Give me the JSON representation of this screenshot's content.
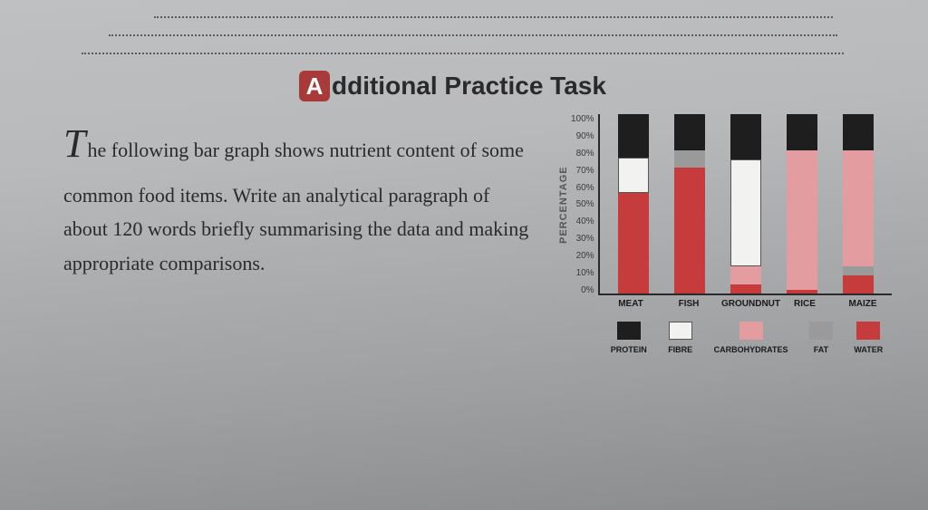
{
  "title": {
    "badge_letter": "A",
    "rest": "dditional Practice Task",
    "badge_bg": "#a93a3a",
    "badge_fg": "#ffffff"
  },
  "paragraph": {
    "dropcap": "T",
    "text": "he following bar graph shows nutrient content of some common food items. Write an analytical paragraph of about 120 words briefly summarising the data and making appropriate comparisons."
  },
  "chart": {
    "type": "stacked-bar",
    "ylabel": "PERCENTAGE",
    "ylim": [
      0,
      100
    ],
    "ytick_step": 10,
    "yticks": [
      "100%",
      "90%",
      "80%",
      "70%",
      "60%",
      "50%",
      "40%",
      "30%",
      "20%",
      "10%",
      "0%"
    ],
    "axis_color": "#2a2a2a",
    "label_color": "#3a3a3a",
    "categories": [
      "MEAT",
      "FISH",
      "GROUNDNUT",
      "RICE",
      "MAIZE"
    ],
    "stack_order": [
      "protein",
      "fibre",
      "carbohydrates",
      "fat",
      "water"
    ],
    "colors": {
      "protein": "#1e1e1e",
      "fibre": "#f2f2f0",
      "fibre_border": "#555555",
      "carbohydrates": "#e39ca0",
      "fat": "#9a9a9a",
      "water": "#c63b3b"
    },
    "data": {
      "MEAT": {
        "water": 56,
        "fat": 0,
        "carbohydrates": 0,
        "fibre": 20,
        "protein": 24
      },
      "FISH": {
        "water": 70,
        "fat": 10,
        "carbohydrates": 0,
        "fibre": 0,
        "protein": 20
      },
      "GROUNDNUT": {
        "water": 5,
        "fat": 0,
        "carbohydrates": 10,
        "fibre": 60,
        "protein": 25
      },
      "RICE": {
        "water": 2,
        "fat": 0,
        "carbohydrates": 78,
        "fibre": 0,
        "protein": 20
      },
      "MAIZE": {
        "water": 10,
        "fat": 5,
        "carbohydrates": 65,
        "fibre": 0,
        "protein": 20
      }
    },
    "legend": [
      {
        "key": "protein",
        "label": "PROTEIN"
      },
      {
        "key": "fibre",
        "label": "FIBRE"
      },
      {
        "key": "carbohydrates",
        "label": "CARBOHYDRATES"
      },
      {
        "key": "fat",
        "label": "FAT"
      },
      {
        "key": "water",
        "label": "WATER"
      }
    ]
  }
}
